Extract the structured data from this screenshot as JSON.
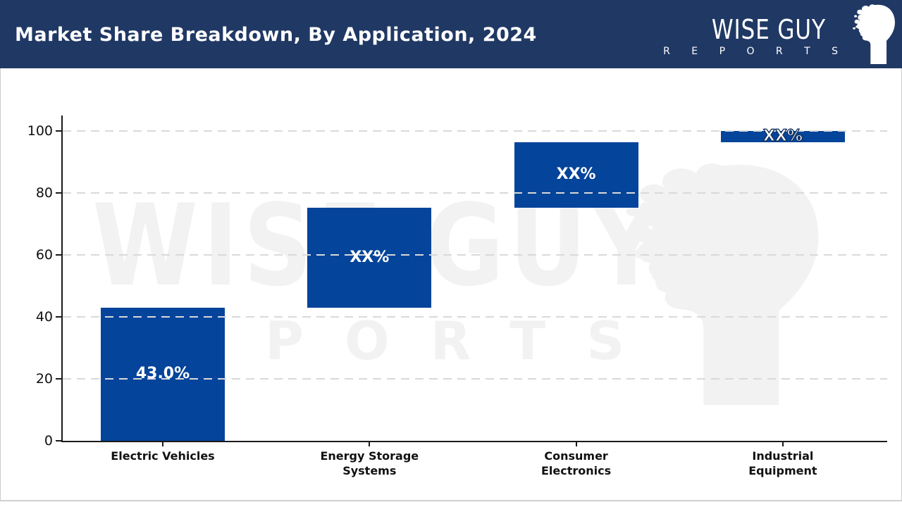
{
  "header": {
    "title": "Market Share Breakdown, By Application, 2024",
    "logo": {
      "brand_line1": "WISE GUY",
      "brand_line2": "R E P O R T S"
    }
  },
  "watermark": {
    "line1": "WISE GUY",
    "line2": "REPORTS"
  },
  "chart_data": {
    "type": "bar",
    "subtype": "waterfall",
    "title": "Market Share Breakdown, By Application, 2024",
    "categories": [
      "Electric Vehicles",
      "Energy Storage\nSystems",
      "Consumer\nElectronics",
      "Industrial\nEquipment"
    ],
    "segments": [
      {
        "category": "Electric Vehicles",
        "start": 0,
        "end": 43,
        "label": "43.0%"
      },
      {
        "category": "Energy Storage Systems",
        "start": 43,
        "end": 75.2,
        "label": "XX%"
      },
      {
        "category": "Consumer Electronics",
        "start": 75.2,
        "end": 96.4,
        "label": "XX%"
      },
      {
        "category": "Industrial Equipment",
        "start": 96.4,
        "end": 100,
        "label": "XX%"
      }
    ],
    "ylim": [
      0,
      104.5
    ],
    "yticks": [
      0,
      20,
      40,
      60,
      80,
      100
    ],
    "grid": "horizontal-dashed",
    "legend": "none",
    "bar_color": "#04449a",
    "bar_label_color": "#ffffff",
    "grid_color": "#d9d9d9",
    "axis_color": "#1a1a1a",
    "header_bg_color": "#203864",
    "watermark_color": "#f2f2f2"
  }
}
